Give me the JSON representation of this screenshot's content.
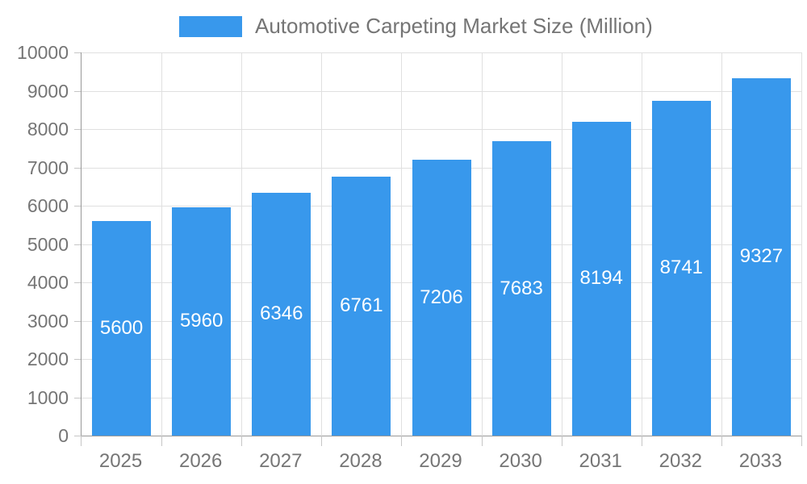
{
  "chart_data": {
    "type": "bar",
    "title": "",
    "legend": "Automotive Carpeting Market Size (Million)",
    "legend_position": "top",
    "categories": [
      "2025",
      "2026",
      "2027",
      "2028",
      "2029",
      "2030",
      "2031",
      "2032",
      "2033"
    ],
    "values": [
      5600,
      5960,
      6346,
      6761,
      7206,
      7683,
      8194,
      8741,
      9327
    ],
    "xlabel": "",
    "ylabel": "",
    "ylim": [
      0,
      10000
    ],
    "ytick_step": 1000,
    "grid": true,
    "value_labels_inside_bars": true,
    "bar_color": "#3898EC",
    "value_label_color": "#FFFFFF",
    "axis_text_color": "#757575",
    "grid_color": "#E0E0E0",
    "axis_line_color": "#999999",
    "tick_color": "#C6C6C6",
    "background_color": "#FFFFFF"
  }
}
